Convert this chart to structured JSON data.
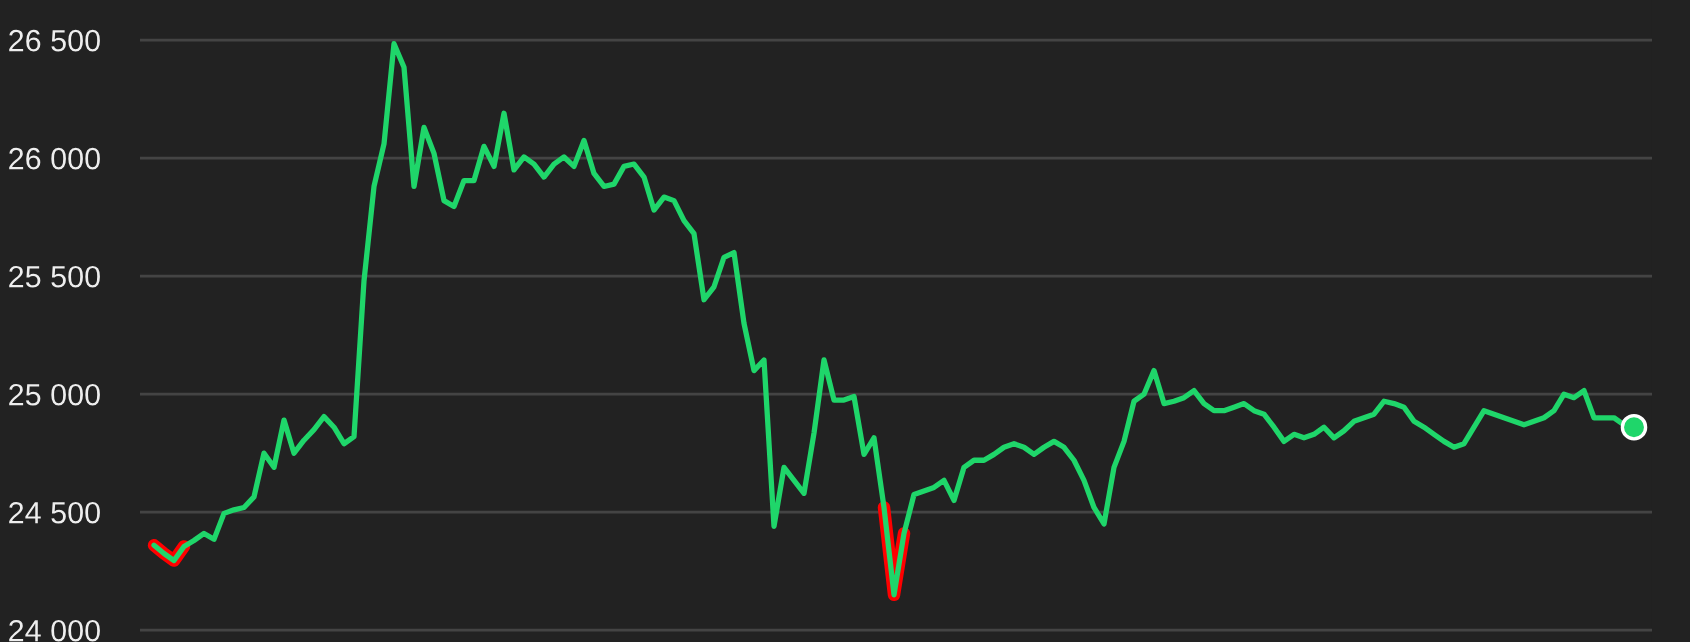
{
  "chart_data": {
    "type": "line",
    "categories": [
      null,
      null,
      null,
      null,
      null,
      null,
      null,
      null,
      null,
      null,
      null,
      null,
      null,
      null,
      null,
      null,
      null,
      null,
      null,
      null,
      null,
      null,
      null,
      null,
      null,
      null,
      null,
      null,
      null,
      null,
      null,
      null,
      null,
      null,
      null,
      null,
      null,
      null,
      null,
      null,
      null,
      null,
      null,
      null,
      null,
      null,
      null,
      null,
      null,
      null,
      null,
      null,
      null,
      null,
      null,
      null,
      null,
      null,
      null,
      null,
      null,
      null,
      null,
      null,
      null,
      null,
      null,
      null,
      null,
      null,
      null,
      null,
      null,
      null,
      null,
      null,
      null,
      null,
      null,
      null,
      null,
      null,
      null,
      null,
      null,
      null,
      null,
      null,
      null,
      null,
      null,
      null,
      null,
      null,
      null,
      null,
      null,
      null,
      null,
      null,
      null,
      null,
      null,
      null,
      null,
      null,
      null,
      null,
      null,
      null,
      null,
      null,
      null,
      null,
      null,
      null,
      null,
      null,
      null,
      null,
      null,
      null,
      null,
      null,
      null,
      null,
      null,
      null,
      null,
      null,
      null,
      null,
      null,
      null,
      null,
      null,
      null,
      null,
      null,
      null,
      null,
      null,
      null,
      null,
      null,
      null,
      null,
      null,
      null
    ],
    "series": [
      {
        "color": "#1fd66a",
        "values": [
          24360,
          24325,
          24295,
          24355,
          24380,
          24410,
          24385,
          24495,
          24510,
          24520,
          24565,
          24750,
          24690,
          24890,
          24750,
          24805,
          24850,
          24905,
          24860,
          24790,
          24820,
          25480,
          25880,
          26060,
          26485,
          26385,
          25880,
          26130,
          26020,
          25820,
          25795,
          25905,
          25905,
          26050,
          25965,
          26190,
          25950,
          26005,
          25975,
          25920,
          25975,
          26005,
          25965,
          26075,
          25935,
          25880,
          25890,
          25965,
          25975,
          25920,
          25780,
          25835,
          25820,
          25735,
          25680,
          25400,
          25455,
          25580,
          25600,
          25300,
          25100,
          25145,
          24440,
          24690,
          24635,
          24580,
          24835,
          25145,
          24975,
          24975,
          24990,
          24745,
          24815,
          24520,
          24150,
          24410,
          24575,
          24590,
          24605,
          24635,
          24550,
          24690,
          24720,
          24720,
          24745,
          24775,
          24790,
          24775,
          24745,
          24775,
          24800,
          24775,
          24720,
          24635,
          24520,
          24450,
          24690,
          24800,
          24970,
          25000,
          25100,
          24960,
          24970,
          24985,
          25015,
          24960,
          24930,
          24930,
          24945,
          24960,
          24930,
          24915,
          24860,
          24800,
          24830,
          24815,
          24830,
          24860,
          24815,
          24845,
          24885,
          24900,
          24915,
          24970,
          24960,
          24945,
          24885,
          24860,
          24830,
          24800,
          24775,
          24790,
          24860,
          24930,
          24915,
          24900,
          24885,
          24870,
          24885,
          24900,
          24930,
          25000,
          24985,
          25015,
          24900,
          24900,
          24900,
          24870,
          24860
        ]
      },
      {
        "color": "#ff0000",
        "values": [
          24360,
          24325,
          24295,
          24355,
          null,
          null,
          null,
          null,
          null,
          null,
          null,
          null,
          null,
          null,
          null,
          null,
          null,
          null,
          null,
          null,
          null,
          null,
          null,
          null,
          null,
          null,
          null,
          null,
          null,
          null,
          null,
          null,
          null,
          null,
          null,
          null,
          null,
          null,
          null,
          null,
          null,
          null,
          null,
          null,
          null,
          null,
          null,
          null,
          null,
          null,
          null,
          null,
          null,
          null,
          null,
          null,
          null,
          null,
          null,
          null,
          null,
          null,
          null,
          null,
          null,
          null,
          null,
          null,
          null,
          null,
          null,
          null,
          null,
          24520,
          24150,
          24410,
          null,
          null,
          null,
          null,
          null,
          null,
          null,
          null,
          null,
          null,
          null,
          null,
          null,
          null,
          null,
          null,
          null,
          null,
          null,
          null,
          null,
          null,
          null,
          null,
          null,
          null,
          null,
          null,
          null,
          null,
          null,
          null,
          null,
          null,
          null,
          null,
          null,
          null,
          null,
          null,
          null,
          null,
          null,
          null,
          null,
          null,
          null,
          null,
          null,
          null,
          null,
          null,
          null,
          null,
          null,
          null,
          null,
          null,
          null,
          null,
          null,
          null,
          null,
          null,
          null,
          null,
          null,
          null,
          null,
          null,
          null,
          null,
          null
        ]
      },
      {
        "type": "scatter",
        "color": "#1fd66a",
        "values": [
          null,
          null,
          null,
          null,
          null,
          null,
          null,
          null,
          null,
          null,
          null,
          null,
          null,
          null,
          null,
          null,
          null,
          null,
          null,
          null,
          null,
          null,
          null,
          null,
          null,
          null,
          null,
          null,
          null,
          null,
          null,
          null,
          null,
          null,
          null,
          null,
          null,
          null,
          null,
          null,
          null,
          null,
          null,
          null,
          null,
          null,
          null,
          null,
          null,
          null,
          null,
          null,
          null,
          null,
          null,
          null,
          null,
          null,
          null,
          null,
          null,
          null,
          null,
          null,
          null,
          null,
          null,
          null,
          null,
          null,
          null,
          null,
          null,
          null,
          null,
          null,
          null,
          null,
          null,
          null,
          null,
          null,
          null,
          null,
          null,
          null,
          null,
          null,
          null,
          null,
          null,
          null,
          null,
          null,
          null,
          null,
          null,
          null,
          null,
          null,
          null,
          null,
          null,
          null,
          null,
          null,
          null,
          null,
          null,
          null,
          null,
          null,
          null,
          null,
          null,
          null,
          null,
          null,
          null,
          null,
          null,
          null,
          null,
          null,
          null,
          null,
          null,
          null,
          null,
          null,
          null,
          null,
          null,
          null,
          null,
          null,
          null,
          null,
          null,
          null,
          null,
          null,
          null,
          null,
          null,
          null,
          null,
          null,
          24860
        ]
      }
    ],
    "ylim": [
      23950,
      26670
    ],
    "yticks": [
      {
        "value": 24000,
        "label": "24 000"
      },
      {
        "value": 24500,
        "label": "24 500"
      },
      {
        "value": 25000,
        "label": "25 000"
      },
      {
        "value": 25500,
        "label": "25 500"
      },
      {
        "value": 26000,
        "label": "26 000"
      },
      {
        "value": 26500,
        "label": "26 500"
      }
    ],
    "grid": "y",
    "tick_labels": "y",
    "legend": false
  }
}
